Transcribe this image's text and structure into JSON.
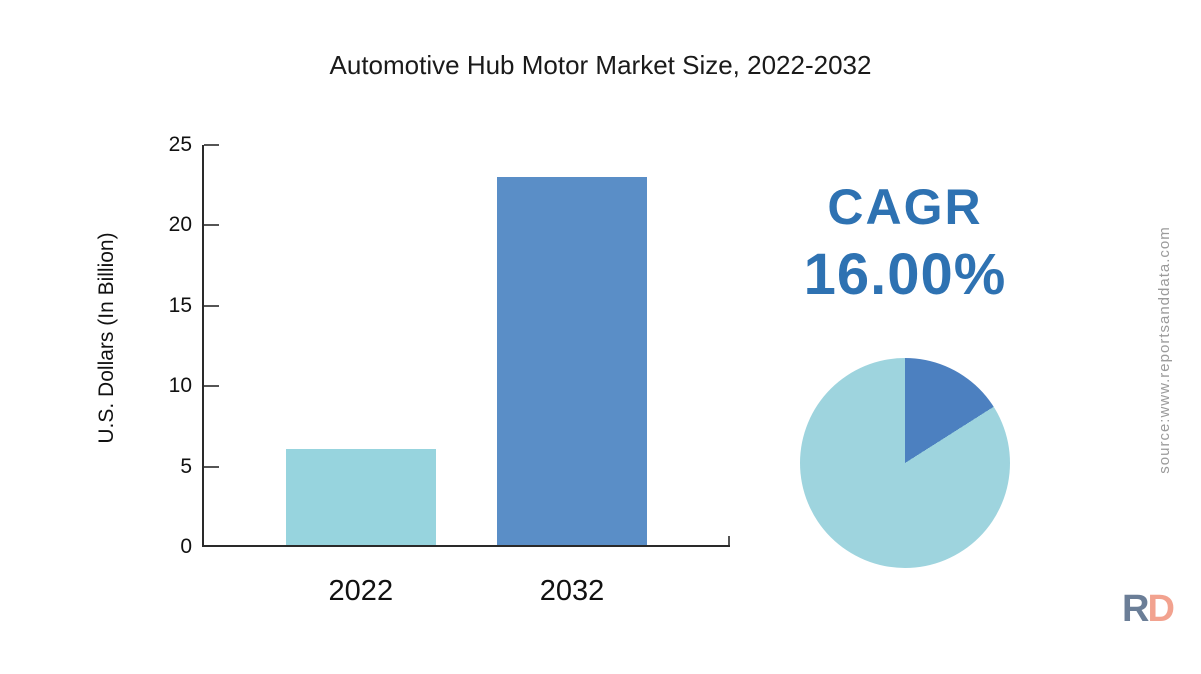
{
  "title": "Automotive Hub Motor Market Size, 2022-2032",
  "source": "source:www.reportsanddata.com",
  "logo": {
    "r": "R",
    "d": "D"
  },
  "cagr": {
    "label": "CAGR",
    "value": "16.00%",
    "color": "#2e72b2"
  },
  "chart_data": [
    {
      "type": "bar",
      "title": "Automotive Hub Motor Market Size, 2022-2032",
      "categories": [
        "2022",
        "2032"
      ],
      "values": [
        6.0,
        22.9
      ],
      "ylabel": "U.S. Dollars (In Billion)",
      "xlabel": "",
      "ylim": [
        0,
        25
      ],
      "yticks": [
        0,
        5,
        10,
        15,
        20,
        25
      ],
      "bar_colors": [
        "#97d4de",
        "#5a8ec7"
      ],
      "grid": false,
      "legend": "none"
    },
    {
      "type": "pie",
      "title": "CAGR 16.00%",
      "slices": [
        {
          "name": "CAGR",
          "value": 16,
          "color": "#4c80c0"
        },
        {
          "name": "remainder",
          "value": 84,
          "color": "#9ed4de"
        }
      ],
      "start_angle_deg": 0,
      "direction": "clockwise"
    }
  ]
}
